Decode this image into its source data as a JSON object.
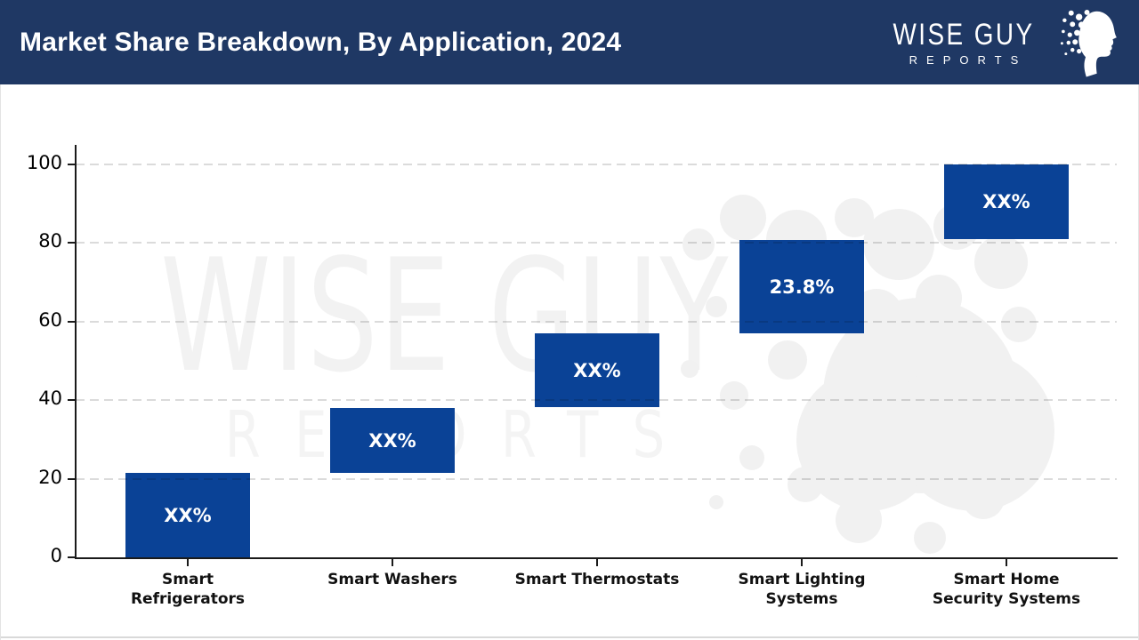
{
  "header": {
    "title": "Market Share Breakdown, By Application, 2024",
    "logo": {
      "line1": "WISE GUY",
      "line2": "REPORTS"
    }
  },
  "watermark": {
    "line1": "WISE GUY",
    "line2": "REPORTS"
  },
  "colors": {
    "header_bg": "#1f3864",
    "bar": "#0a4296",
    "axis": "#1a1a1a",
    "watermark": "#f2f2f2",
    "bottom_edge": "#d9d9d9"
  },
  "chart_data": {
    "type": "bar",
    "subtype": "floating-waterfall",
    "title": "Market Share Breakdown, By Application, 2024",
    "categories": [
      "Smart Refrigerators",
      "Smart Washers",
      "Smart Thermostats",
      "Smart Lighting Systems",
      "Smart Home Security Systems"
    ],
    "category_lines": [
      [
        "Smart",
        "Refrigerators"
      ],
      [
        "Smart Washers"
      ],
      [
        "Smart Thermostats"
      ],
      [
        "Smart Lighting",
        "Systems"
      ],
      [
        "Smart Home",
        "Security Systems"
      ]
    ],
    "bars": [
      {
        "category": "Smart Refrigerators",
        "start": 0,
        "end": 21.4,
        "label": "XX%"
      },
      {
        "category": "Smart Washers",
        "start": 21.5,
        "end": 38.0,
        "label": "XX%"
      },
      {
        "category": "Smart Thermostats",
        "start": 38.2,
        "end": 57.0,
        "label": "XX%"
      },
      {
        "category": "Smart Lighting Systems",
        "start": 57.0,
        "end": 80.8,
        "label": "23.8%"
      },
      {
        "category": "Smart Home Security Systems",
        "start": 81.0,
        "end": 100.0,
        "label": "XX%"
      }
    ],
    "xlabel": "",
    "ylabel": "",
    "ylim": [
      0,
      105
    ],
    "yticks": [
      0,
      20,
      40,
      60,
      80,
      100
    ],
    "grid": "horizontal-dashed",
    "legend": "none",
    "bar_color": "#0a4296",
    "bar_label_color": "#ffffff"
  }
}
